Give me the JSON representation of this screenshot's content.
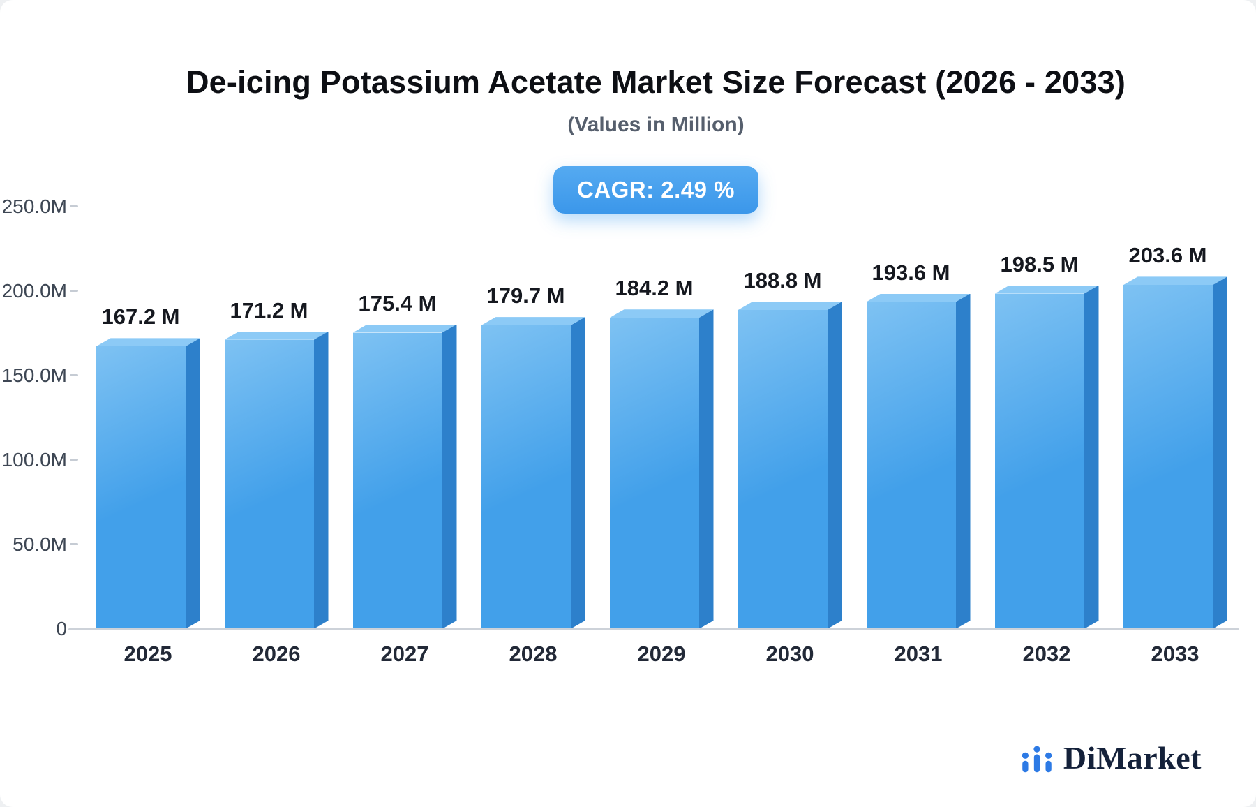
{
  "chart_data": {
    "type": "bar",
    "title": "De-icing Potassium Acetate Market Size Forecast (2026 - 2033)",
    "subtitle": "(Values in Million)",
    "cagr_label": "CAGR: 2.49 %",
    "cagr_percent": 2.49,
    "unit": "Million (M)",
    "categories": [
      "2025",
      "2026",
      "2027",
      "2028",
      "2029",
      "2030",
      "2031",
      "2032",
      "2033"
    ],
    "values": [
      167.2,
      171.2,
      175.4,
      179.7,
      184.2,
      188.8,
      193.6,
      198.5,
      203.6
    ],
    "value_labels": [
      "167.2 M",
      "171.2 M",
      "175.4 M",
      "179.7 M",
      "184.2 M",
      "188.8 M",
      "193.6 M",
      "198.5 M",
      "203.6 M"
    ],
    "xlabel": "",
    "ylabel": "",
    "ylim": [
      0,
      250
    ],
    "ytick_labels": [
      "0",
      "50.0M",
      "100.0M",
      "150.0M",
      "200.0M",
      "250.0M"
    ],
    "grid": false,
    "legend": "none",
    "bar_front_color": "#42a0ea",
    "bar_front_color_light": "#7ec2f3",
    "bar_side_color": "#2d80cb",
    "bar_top_color": "#8ccaf6",
    "axis_line_color": "#cdd2d9",
    "badge_color": "#3b97ea",
    "badge_color_light": "#55aaf1"
  },
  "brand": {
    "name": "DiMarket",
    "icon": "dimarket-bars-logo-icon",
    "icon_color": "#2d7ae5",
    "text_color": "#14213a"
  }
}
